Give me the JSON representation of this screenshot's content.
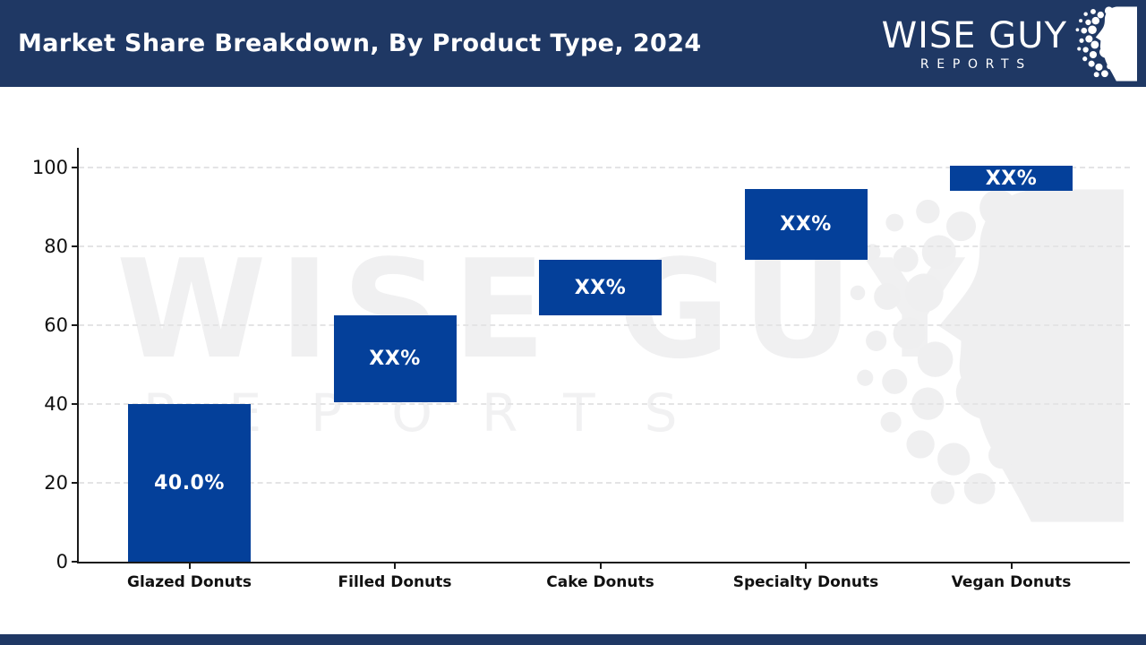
{
  "header": {
    "title": "Market Share Breakdown, By Product Type, 2024",
    "bg_color": "#1F3864",
    "logo": {
      "name": "WISE GUY",
      "sub": "REPORTS"
    }
  },
  "watermark": {
    "line1": "WISE GUY",
    "line2": "REPORTS"
  },
  "footer": {
    "bg_color": "#1F3864"
  },
  "chart_data": {
    "type": "bar",
    "subtype": "stacked-waterfall-market-share",
    "title": "Market Share Breakdown, By Product Type, 2024",
    "categories": [
      "Glazed Donuts",
      "Filled Donuts",
      "Cake Donuts",
      "Specialty Donuts",
      "Vegan Donuts"
    ],
    "segments": [
      {
        "category": "Glazed Donuts",
        "start": 0,
        "end": 40,
        "label": "40.0%"
      },
      {
        "category": "Filled Donuts",
        "start": 40.5,
        "end": 62.5,
        "label": "XX%"
      },
      {
        "category": "Cake Donuts",
        "start": 62.5,
        "end": 76.5,
        "label": "XX%"
      },
      {
        "category": "Specialty Donuts",
        "start": 76.5,
        "end": 94.5,
        "label": "XX%"
      },
      {
        "category": "Vegan Donuts",
        "start": 94,
        "end": 100.5,
        "label": "XX%"
      }
    ],
    "xlabel": "",
    "ylabel": "",
    "yticks": [
      0,
      20,
      40,
      60,
      80,
      100
    ],
    "ylim": [
      0,
      105
    ],
    "grid": "horizontal-dashed",
    "legend": "none",
    "bar_color": "#04409A",
    "bar_label_color": "#FFFFFF",
    "axis_color": "#1a1a1a"
  }
}
